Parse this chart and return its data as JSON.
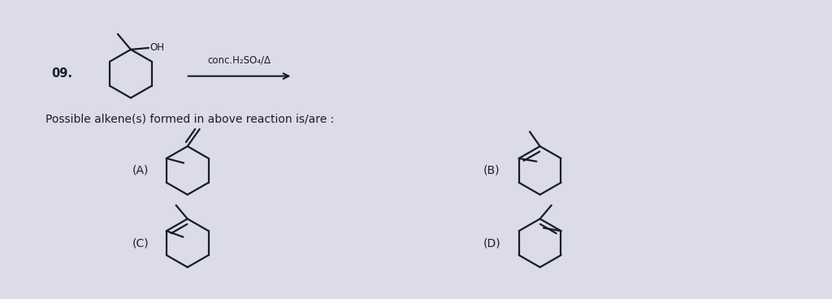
{
  "bg_color": "#dcdce8",
  "line_color": "#1a1a2e",
  "question_num": "09.",
  "reagent": "conc.H₂SO₄/Δ",
  "question_text": "Possible alkene(s) formed in above reaction is/are :",
  "labels": [
    "(A)",
    "(B)",
    "(C)",
    "(D)"
  ],
  "figsize": [
    10.24,
    3.68
  ],
  "dpi": 100,
  "struct_r": 0.3,
  "lw": 1.6
}
